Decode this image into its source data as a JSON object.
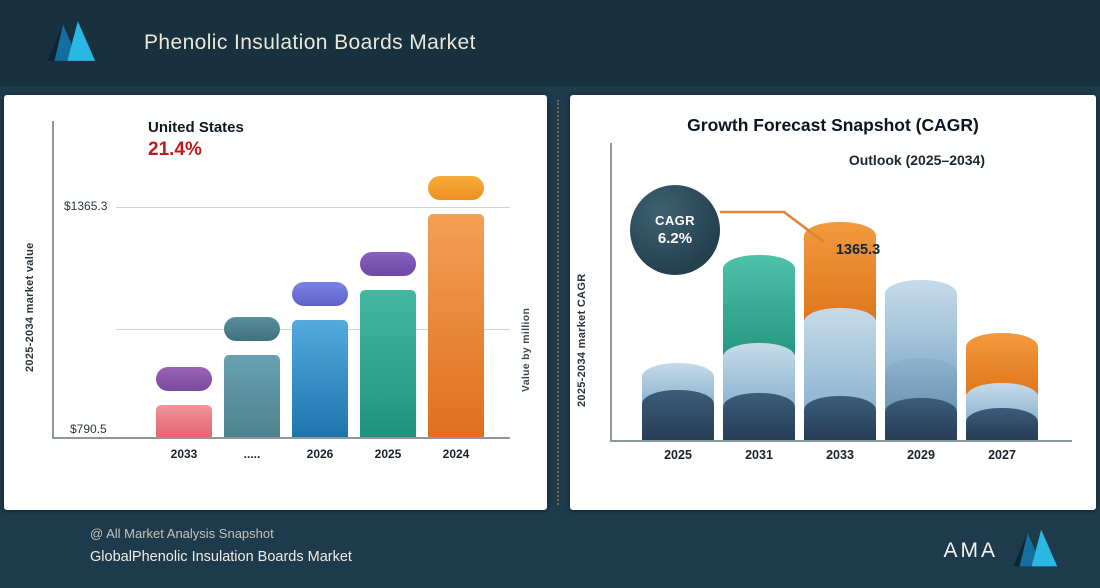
{
  "header": {
    "title": "Phenolic Insulation Boards Market",
    "brand": "AMA"
  },
  "left_panel": {
    "region": "United States",
    "growth": "21.4%",
    "y_axis_label": "2025-2034 market value",
    "right_axis_label": "Value by million",
    "tick_top": "$1365.3",
    "tick_bottom": "$790.5"
  },
  "right_panel": {
    "title": "Growth Forecast Snapshot (CAGR)",
    "subtitle": "Outlook (2025–2034)",
    "cagr_label": "CAGR",
    "cagr_value": "6.2%",
    "peak_label": "1365.3",
    "y_axis_label": "2025-2034 market CAGR"
  },
  "footer": {
    "line1": "@ All Market Analysis Snapshot",
    "line2": "GlobalPhenolic Insulation Boards Market",
    "brand": "AMA"
  },
  "colors": {
    "background": "#1d3b4c",
    "header_bg": "#17313f",
    "panel_bg": "#ffffff",
    "accent_red": "#c01a1a",
    "accent_orange": "#e0813a",
    "cagr_circle": "#2c4a59",
    "axis": "#8d979e",
    "gridline": "#cfd4d8"
  },
  "chart_data": [
    {
      "type": "bar",
      "title": "United States 2025-2034 market value",
      "categories": [
        "2033",
        ".....",
        "2026",
        "2025",
        "2024"
      ],
      "values": [
        870,
        996,
        1084,
        1159,
        1348
      ],
      "unit": "USD million (estimated from axis)",
      "ylabel": "2025-2034 market value",
      "ylabel_right": "Value by million",
      "ylim": [
        790.5,
        1365.3
      ],
      "yticks": [
        "$790.5",
        "$1365.3"
      ],
      "grid": true,
      "bar_colors": [
        [
          "#f0949c",
          "#e5656f"
        ],
        [
          "#68a1af",
          "#4e828f"
        ],
        [
          "#53aade",
          "#1f74ae"
        ],
        [
          "#42b8a2",
          "#1f937f"
        ],
        [
          "#f3a055",
          "#e06f1e"
        ]
      ],
      "pill_colors": [
        [
          "#9a63b8",
          "#7b4a99"
        ],
        [
          "#578f9e",
          "#40707e"
        ],
        [
          "#7b83e2",
          "#5a62c6"
        ],
        [
          "#8a60c0",
          "#6d49a4"
        ],
        [
          "#f6ad3a",
          "#ee8f1f"
        ]
      ]
    },
    {
      "type": "stacked-bar",
      "title": "Growth Forecast Snapshot (CAGR)",
      "subtitle": "Outlook (2025–2034)",
      "cagr": "6.2%",
      "categories": [
        "2025",
        "2031",
        "2033",
        "2029",
        "2027"
      ],
      "ylim": [
        0,
        1500
      ],
      "peak": {
        "category": "2033",
        "value": 1365.3
      },
      "bars": [
        {
          "category": "2025",
          "total": 482,
          "segments": [
            {
              "value": 238,
              "color": "navy"
            },
            {
              "value": 244,
              "color": "lightblue"
            }
          ]
        },
        {
          "category": "2031",
          "total": 1158,
          "segments": [
            {
              "value": 219,
              "color": "navy"
            },
            {
              "value": 313,
              "color": "lightblue"
            },
            {
              "value": 626,
              "color": "teal"
            }
          ]
        },
        {
          "category": "2033",
          "total": 1365,
          "segments": [
            {
              "value": 200,
              "color": "navy"
            },
            {
              "value": 551,
              "color": "lightblue"
            },
            {
              "value": 614,
              "color": "orange"
            }
          ]
        },
        {
          "category": "2029",
          "total": 1002,
          "segments": [
            {
              "value": 188,
              "color": "navy"
            },
            {
              "value": 250,
              "color": "steel"
            },
            {
              "value": 564,
              "color": "lightblue"
            }
          ]
        },
        {
          "category": "2027",
          "total": 670,
          "segments": [
            {
              "value": 125,
              "color": "navy"
            },
            {
              "value": 157,
              "color": "lightblue"
            },
            {
              "value": 388,
              "color": "orange"
            }
          ]
        }
      ],
      "segment_colors": {
        "navy": [
          "#3c5d7a",
          "#263d55"
        ],
        "lightblue": [
          "#c6dbea",
          "#8fb5d0"
        ],
        "teal": [
          "#4fc2aa",
          "#27977f"
        ],
        "orange": [
          "#f29a3e",
          "#e0761e"
        ],
        "steel": [
          "#8fb2cc",
          "#6d96b5"
        ]
      }
    }
  ]
}
